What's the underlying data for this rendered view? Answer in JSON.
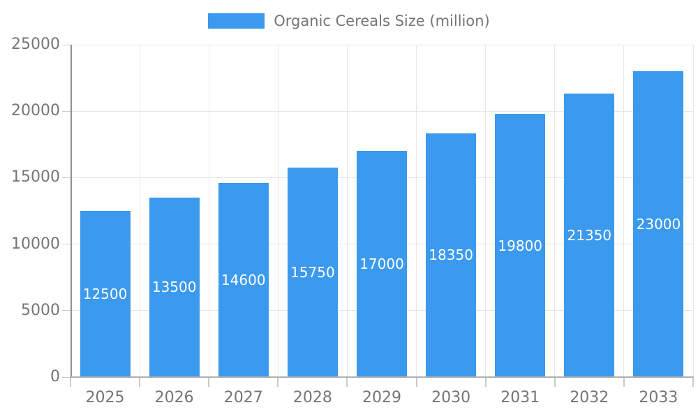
{
  "legend": {
    "label": "Organic Cereals Size (million)",
    "swatch_color": "#3B99EE"
  },
  "chart_data": {
    "type": "bar",
    "title": "Organic Cereals Size (million)",
    "categories": [
      "2025",
      "2026",
      "2027",
      "2028",
      "2029",
      "2030",
      "2031",
      "2032",
      "2033"
    ],
    "values": [
      12500,
      13500,
      14600,
      15750,
      17000,
      18350,
      19800,
      21350,
      23000
    ],
    "xlabel": "",
    "ylabel": "",
    "ylim": [
      0,
      25000
    ],
    "yticks": [
      0,
      5000,
      10000,
      15000,
      20000,
      25000
    ],
    "grid": true,
    "legend_position": "top",
    "value_labels_inside_bars": true,
    "colors": {
      "bar": "#3B99EE",
      "value_label": "#FFFFFF",
      "axis_text": "#757575",
      "gridline": "#E6E6E6",
      "y_axis_line": "#8F8F8F",
      "x_axis_line": "#B0B0B0",
      "tick_mark": "#C9C9C9",
      "background": "#FFFFFF"
    }
  }
}
